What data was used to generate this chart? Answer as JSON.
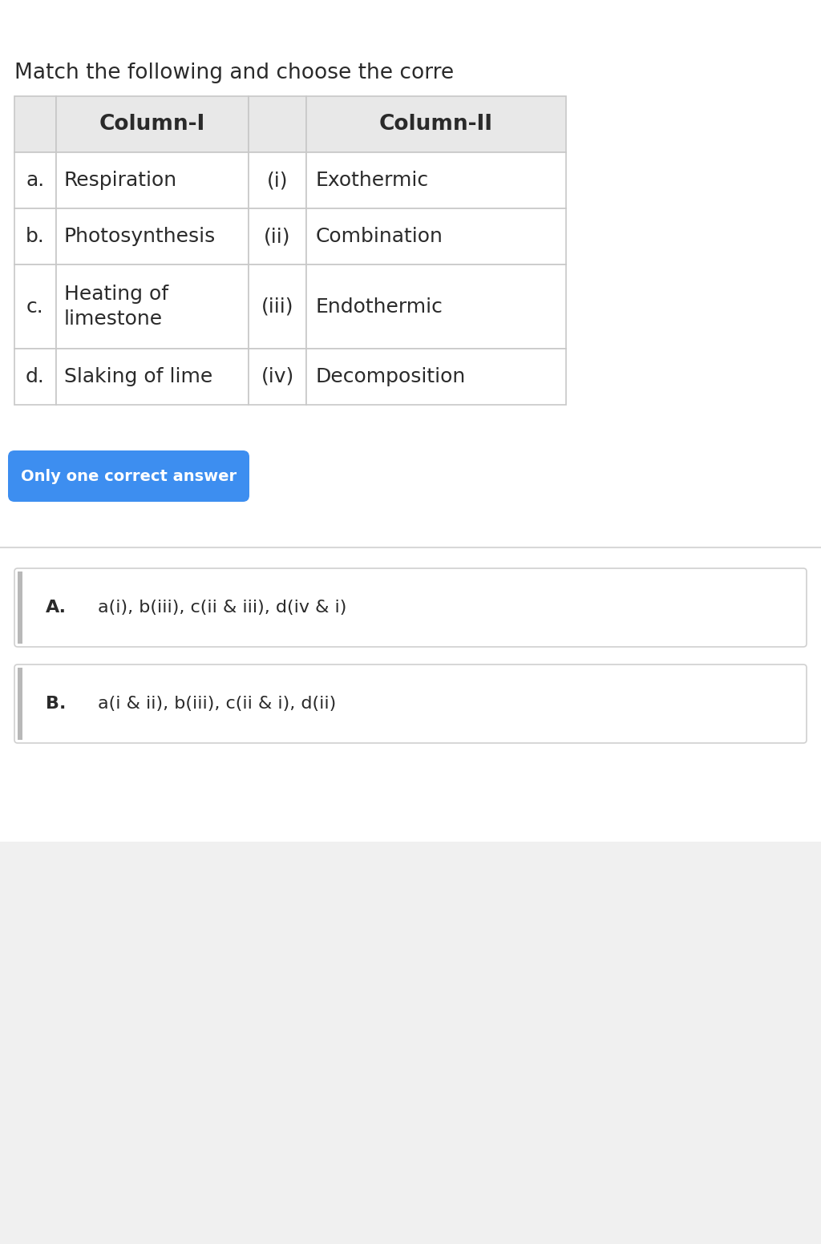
{
  "title": "Match the following and choose the corre",
  "title_fontsize": 19,
  "page_bg": "#f0f0f0",
  "white_bg": "#ffffff",
  "col1_header": "Column-I",
  "col2_header": "Column-II",
  "rows": [
    {
      "letter": "a.",
      "col1": "Respiration",
      "roman": "(i)",
      "col2": "Exothermic"
    },
    {
      "letter": "b.",
      "col1": "Photosynthesis",
      "roman": "(ii)",
      "col2": "Combination"
    },
    {
      "letter": "c.",
      "col1": "Heating of\nlimestone",
      "roman": "(iii)",
      "col2": "Endothermic"
    },
    {
      "letter": "d.",
      "col1": "Slaking of lime",
      "roman": "(iv)",
      "col2": "Decomposition"
    }
  ],
  "badge_text": "Only one correct answer",
  "badge_bg": "#3d8ef0",
  "badge_text_color": "#ffffff",
  "options": [
    {
      "letter": "A.",
      "text": "a(i), b(iii), c(ii & iii), d(iv & i)"
    },
    {
      "letter": "B.",
      "text": "a(i & ii), b(iii), c(ii & i), d(ii)"
    }
  ],
  "option_box_bg": "#ffffff",
  "option_border": "#d0d0d0",
  "table_border": "#c8c8c8",
  "header_bg": "#e8e8e8",
  "cell_bg": "#ffffff",
  "text_color": "#2a2a2a",
  "font_size_table": 18,
  "font_size_options": 16,
  "font_size_header": 19,
  "tab_bg": "#e0e0e0"
}
